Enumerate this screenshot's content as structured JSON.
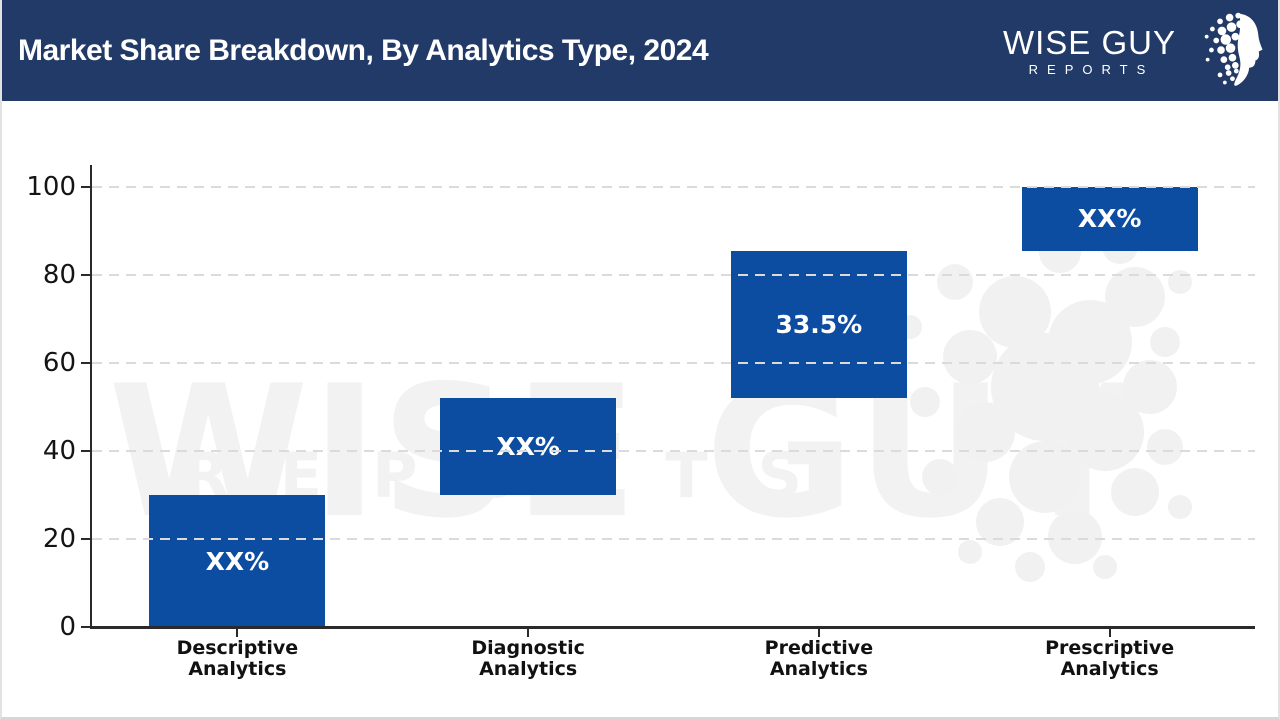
{
  "header": {
    "title": "Market Share Breakdown, By Analytics Type, 2024",
    "brand": {
      "line1": "WISE GUY",
      "line2": "REPORTS"
    },
    "bg_color": "#223A67"
  },
  "watermark": {
    "line1": "WISE GUY",
    "line2": "REPORTS"
  },
  "chart_data": {
    "type": "bar",
    "subtype": "waterfall",
    "title": "Market Share Breakdown, By Analytics Type, 2024",
    "categories": [
      "Descriptive Analytics",
      "Diagnostic Analytics",
      "Predictive Analytics",
      "Prescriptive Analytics"
    ],
    "bars": [
      {
        "category": "Descriptive Analytics",
        "start": 0,
        "end": 30,
        "label": "XX%"
      },
      {
        "category": "Diagnostic Analytics",
        "start": 30,
        "end": 52,
        "label": "XX%"
      },
      {
        "category": "Predictive Analytics",
        "start": 52,
        "end": 85.5,
        "label": "33.5%"
      },
      {
        "category": "Prescriptive Analytics",
        "start": 85.5,
        "end": 100,
        "label": "XX%"
      }
    ],
    "ylim": [
      0,
      100
    ],
    "yticks": [
      0,
      20,
      40,
      60,
      80,
      100
    ],
    "xlabel": "",
    "ylabel": "",
    "grid": "horizontal-dashed",
    "legend": "none",
    "bar_color": "#0C4DA2",
    "bar_label_color": "#FFFFFF"
  },
  "colors": {
    "header_bg": "#223A67",
    "bar": "#0C4DA2",
    "axis": "#2A2A2A",
    "gridline": "#DBDBDB",
    "watermark": "#F2F2F2"
  }
}
